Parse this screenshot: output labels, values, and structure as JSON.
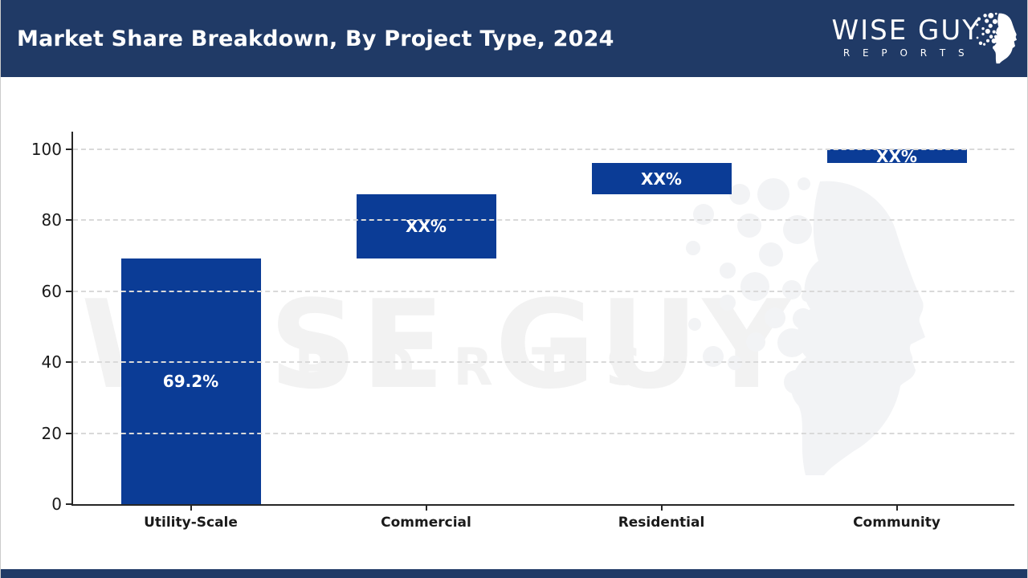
{
  "header": {
    "title": "Market Share Breakdown, By Project Type, 2024",
    "bg_color": "#203a66",
    "logo": {
      "line1": "WISE GUY",
      "line2": "R E P O R T S"
    }
  },
  "watermark": {
    "line1": "WISE GUY",
    "line2": "R E P O R T S"
  },
  "chart_data": {
    "type": "bar",
    "subtype": "floating-waterfall",
    "title": "Market Share Breakdown, By Project Type, 2024",
    "categories": [
      "Utility-Scale",
      "Commercial",
      "Residential",
      "Community"
    ],
    "segments": [
      {
        "category": "Utility-Scale",
        "start": 0,
        "end": 69.2,
        "label": "69.2%"
      },
      {
        "category": "Commercial",
        "start": 69.2,
        "end": 87.3,
        "label": "XX%"
      },
      {
        "category": "Residential",
        "start": 87.3,
        "end": 96.1,
        "label": "XX%"
      },
      {
        "category": "Community",
        "start": 96.1,
        "end": 100,
        "label": "XX%"
      }
    ],
    "yticks": [
      0,
      20,
      40,
      60,
      80,
      100
    ],
    "ylim": [
      0,
      105
    ],
    "xlabel": "",
    "ylabel": "",
    "grid": "dashed-horizontal",
    "legend": "none",
    "bar_color": "#0b3c96",
    "bar_label_color": "#ffffff",
    "axis_color": "#262626",
    "grid_color": "#d9d9d9"
  },
  "footer": {
    "bg_color": "#203a66"
  }
}
